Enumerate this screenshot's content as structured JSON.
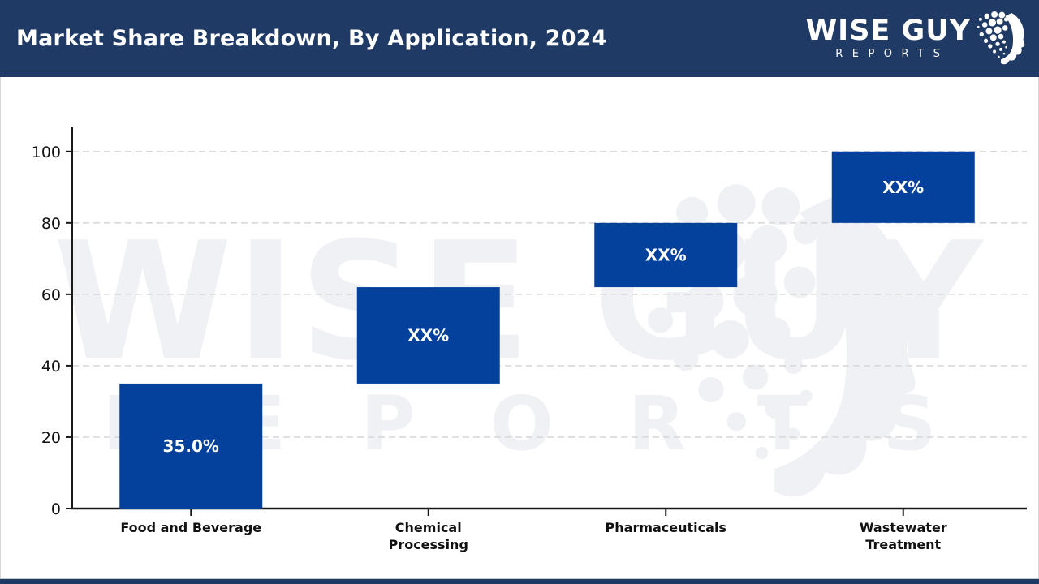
{
  "header": {
    "title": "Market Share Breakdown, By Application, 2024",
    "background_color": "#203a66",
    "logo": {
      "primary": "WISE GUY",
      "secondary": "REPORTS"
    }
  },
  "watermark": {
    "primary": "WISE GUY",
    "secondary": "REPORTS"
  },
  "footer": {
    "background_color": "#203a66"
  },
  "chart_data": {
    "type": "bar",
    "variant": "waterfall",
    "title": "Market Share Breakdown, By Application, 2024",
    "xlabel": "",
    "ylabel": "",
    "ylim": [
      0,
      105
    ],
    "yticks": [
      0,
      20,
      40,
      60,
      80,
      100
    ],
    "grid": {
      "horizontal": true,
      "style": "dashed",
      "color": "#d9d9d9"
    },
    "legend": "none",
    "bar_color": "#04419c",
    "label_color": "#ffffff",
    "categories": [
      {
        "name": "Food and Beverage",
        "lines": [
          "Food and Beverage"
        ]
      },
      {
        "name": "Chemical Processing",
        "lines": [
          "Chemical",
          "Processing"
        ]
      },
      {
        "name": "Pharmaceuticals",
        "lines": [
          "Pharmaceuticals"
        ]
      },
      {
        "name": "Wastewater Treatment",
        "lines": [
          "Wastewater",
          "Treatment"
        ]
      }
    ],
    "segments": [
      {
        "category": "Food and Beverage",
        "start": 0,
        "end": 35,
        "label": "35.0%"
      },
      {
        "category": "Chemical Processing",
        "start": 35,
        "end": 62,
        "label": "XX%"
      },
      {
        "category": "Pharmaceuticals",
        "start": 62,
        "end": 80,
        "label": "XX%"
      },
      {
        "category": "Wastewater Treatment",
        "start": 80,
        "end": 100,
        "label": "XX%"
      }
    ]
  }
}
